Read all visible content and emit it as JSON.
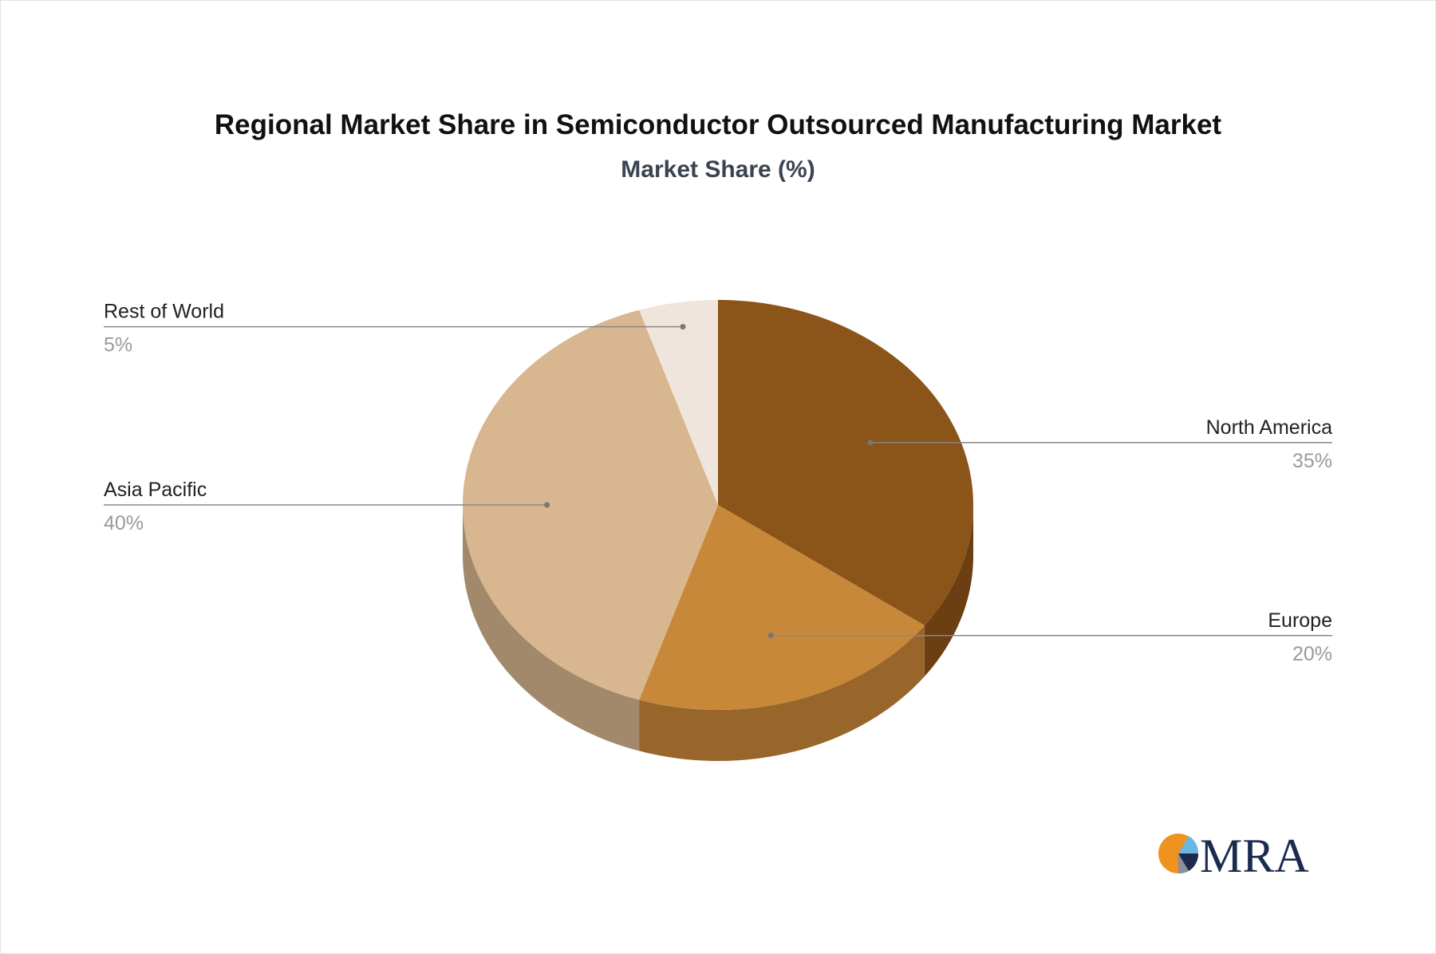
{
  "chart_data": {
    "type": "pie",
    "title": "Regional Market Share in Semiconductor Outsourced Manufacturing Market",
    "subtitle": "Market Share (%)",
    "slices": [
      {
        "name": "North America",
        "value": 35,
        "label": "35%",
        "color": "#8b5419",
        "side_color": "#6b3f12"
      },
      {
        "name": "Europe",
        "value": 20,
        "label": "20%",
        "color": "#c8883a",
        "side_color": "#98662b"
      },
      {
        "name": "Asia Pacific",
        "value": 40,
        "label": "40%",
        "color": "#d7b690",
        "side_color": "#a2896c"
      },
      {
        "name": "Rest of World",
        "value": 5,
        "label": "5%",
        "color": "#efe5dc",
        "side_color": "#b8aea6"
      }
    ]
  },
  "logo": {
    "text": "MRA"
  }
}
